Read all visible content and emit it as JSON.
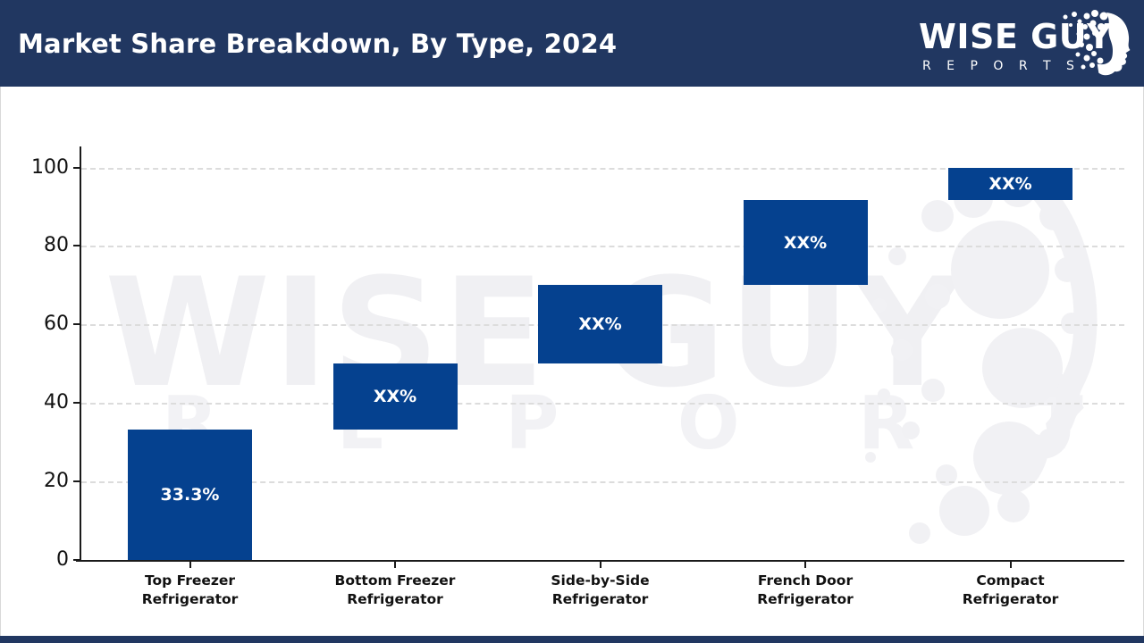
{
  "header": {
    "title": "Market Share Breakdown, By Type, 2024",
    "background": "#213761"
  },
  "logo": {
    "line1": "WISE GUY",
    "line2": "R E P O R T S"
  },
  "watermark": {
    "line1": "WISE GUY",
    "line2": "R E P O R T S"
  },
  "chart_data": {
    "type": "bar",
    "subtype": "floating-stacked-progression",
    "title": "Market Share Breakdown, By Type, 2024",
    "categories": [
      "Top Freezer\nRefrigerator",
      "Bottom Freezer\nRefrigerator",
      "Side-by-Side\nRefrigerator",
      "French Door\nRefrigerator",
      "Compact\nRefrigerator"
    ],
    "bars": [
      {
        "category": "Top Freezer Refrigerator",
        "start": 0,
        "end": 33.3,
        "value": 33.3,
        "label": "33.3%"
      },
      {
        "category": "Bottom Freezer Refrigerator",
        "start": 33.3,
        "end": 50,
        "value": 16.7,
        "label": "XX%"
      },
      {
        "category": "Side-by-Side Refrigerator",
        "start": 50,
        "end": 70,
        "value": 20,
        "label": "XX%"
      },
      {
        "category": "French Door Refrigerator",
        "start": 70,
        "end": 91.7,
        "value": 21.7,
        "label": "XX%"
      },
      {
        "category": "Compact Refrigerator",
        "start": 91.7,
        "end": 100,
        "value": 8.3,
        "label": "XX%"
      }
    ],
    "axis": {
      "ymin": 0,
      "ymax": 104,
      "yticks": [
        0,
        20,
        40,
        60,
        80,
        100
      ]
    },
    "grid": {
      "horizontal": true,
      "style": "dashed",
      "color": "#dcdcdc"
    },
    "legend": null,
    "ylabel": "",
    "xlabel": "",
    "style": {
      "bar_color": "#05418F",
      "bar_label_color": "#ffffff"
    }
  }
}
